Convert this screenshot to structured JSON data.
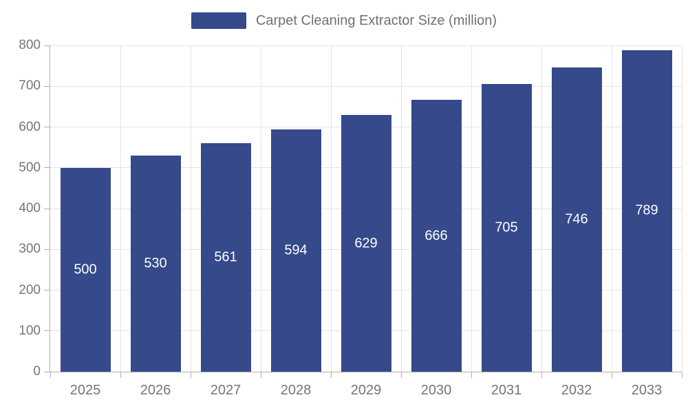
{
  "chart_data": {
    "type": "bar",
    "title": "Carpet Cleaning Extractor Size (million)",
    "categories": [
      "2025",
      "2026",
      "2027",
      "2028",
      "2029",
      "2030",
      "2031",
      "2032",
      "2033"
    ],
    "values": [
      500,
      530,
      561,
      594,
      629,
      666,
      705,
      746,
      789
    ],
    "xlabel": "",
    "ylabel": "",
    "ylim": [
      0,
      800
    ],
    "y_interval": 100,
    "y_tick_labels": [
      "0",
      "100",
      "200",
      "300",
      "400",
      "500",
      "600",
      "700",
      "800"
    ],
    "grid": true,
    "legend_position": "top-center",
    "value_labels": "inside-center",
    "colors": {
      "bar": "#35498b",
      "value_text": "#ffffff",
      "axis": "#aeaeae",
      "grid": "#e3e3e3",
      "tick_text": "#757575",
      "legend_text": "#6e7079",
      "background": "#ffffff"
    }
  }
}
